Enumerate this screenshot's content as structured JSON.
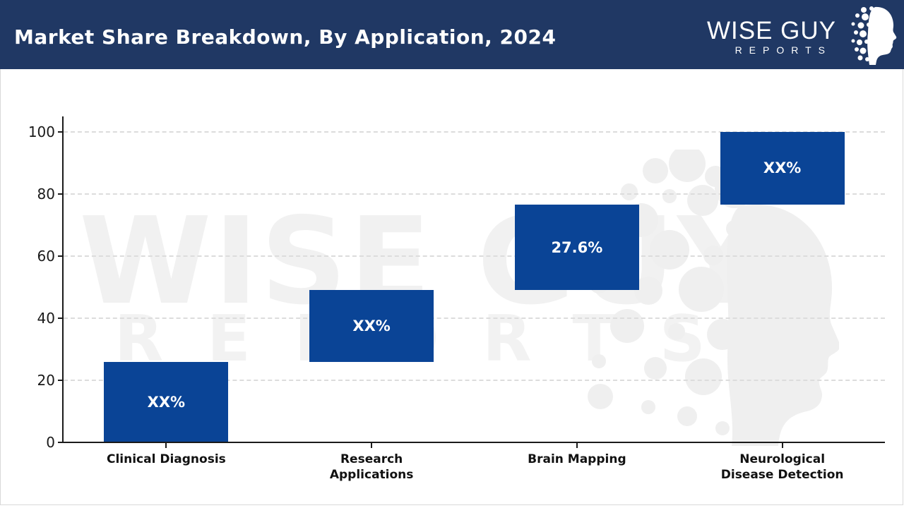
{
  "header": {
    "title": "Market Share Breakdown, By Application, 2024",
    "logo": {
      "wordmark": "WISE GUY",
      "subtext": "REPORTS"
    }
  },
  "watermark": {
    "line1": "WISE GUY",
    "line2": "REPORTS"
  },
  "chart_data": {
    "type": "bar",
    "variant": "waterfall",
    "title": "Market Share Breakdown, By Application, 2024",
    "xlabel": "",
    "ylabel": "",
    "categories": [
      "Clinical Diagnosis",
      "Research\nApplications",
      "Brain Mapping",
      "Neurological\nDisease Detection"
    ],
    "segments": [
      {
        "category": "Clinical Diagnosis",
        "start": 0,
        "end": 26,
        "value_label": "XX%"
      },
      {
        "category": "Research Applications",
        "start": 26,
        "end": 49,
        "value_label": "XX%"
      },
      {
        "category": "Brain Mapping",
        "start": 49,
        "end": 76.6,
        "value_label": "27.6%"
      },
      {
        "category": "Neurological Disease Detection",
        "start": 76.6,
        "end": 100,
        "value_label": "XX%"
      }
    ],
    "yticks": [
      0,
      20,
      40,
      60,
      80,
      100
    ],
    "ylim": [
      0,
      105
    ],
    "grid": true,
    "legend": false,
    "colors": {
      "bar": "#0a4496",
      "bar_label": "#ffffff",
      "grid": "#dcdcdc",
      "axis": "#1a1a1a",
      "header_bg": "#203864",
      "watermark": "#f1f1f1"
    }
  }
}
